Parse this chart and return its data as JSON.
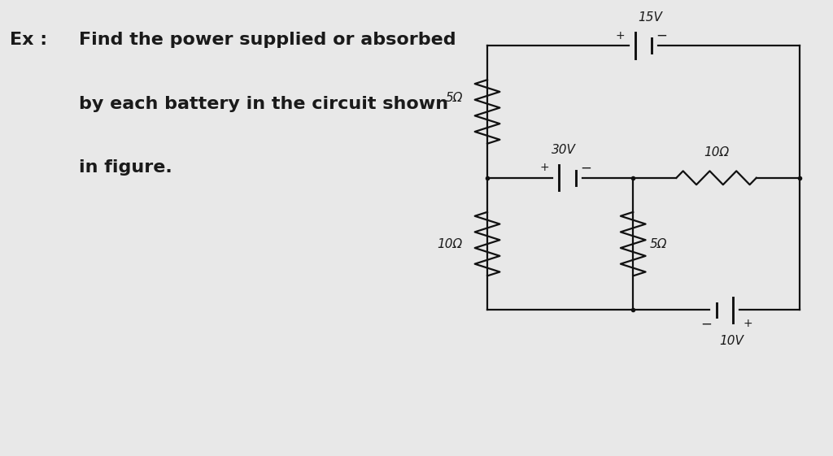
{
  "bg_color": "#e8e8e8",
  "text_color": "#1a1a1a",
  "ex_label": "Ex :",
  "line1": "Find the power supplied or absorbed",
  "line2": "by each battery in the circuit shown",
  "line3": "in figure.",
  "wire_color": "#111111",
  "lw": 1.6,
  "L": 0.585,
  "R": 0.96,
  "T": 0.9,
  "B": 0.32,
  "MX": 0.76,
  "MY": 0.61,
  "labels": {
    "v15": "15V",
    "v30": "30V",
    "v10": "10V",
    "r5_left": "5Ω",
    "r10_left": "10Ω",
    "r10_mid": "10Ω",
    "r5_mid": "5Ω"
  }
}
